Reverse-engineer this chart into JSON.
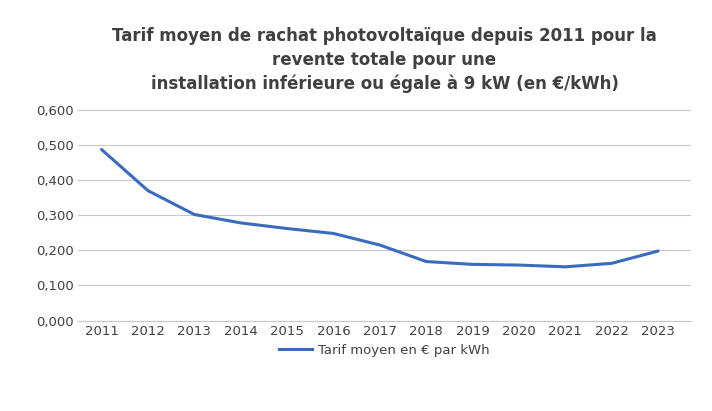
{
  "title_line1": "Tarif moyen de rachat photovoltaïque depuis 2011 pour la",
  "title_line2": "revente totale pour une",
  "title_line3": "installation inférieure ou égale à 9 kW (en €/kWh)",
  "years": [
    2011,
    2012,
    2013,
    2014,
    2015,
    2016,
    2017,
    2018,
    2019,
    2020,
    2021,
    2022,
    2023
  ],
  "values": [
    0.487,
    0.37,
    0.302,
    0.278,
    0.262,
    0.248,
    0.215,
    0.168,
    0.16,
    0.158,
    0.153,
    0.163,
    0.198
  ],
  "line_color": "#3a6bbf",
  "line_width": 2.2,
  "ylim": [
    0.0,
    0.62
  ],
  "yticks": [
    0.0,
    0.1,
    0.2,
    0.3,
    0.4,
    0.5,
    0.6
  ],
  "ytick_labels": [
    "0,000",
    "0,100",
    "0,200",
    "0,300",
    "0,400",
    "0,500",
    "0,600"
  ],
  "legend_label": "Tarif moyen en € par kWh",
  "background_color": "#ffffff",
  "grid_color": "#c8c8c8",
  "title_fontsize": 12,
  "tick_fontsize": 9.5,
  "legend_fontsize": 9.5,
  "text_color": "#404040"
}
